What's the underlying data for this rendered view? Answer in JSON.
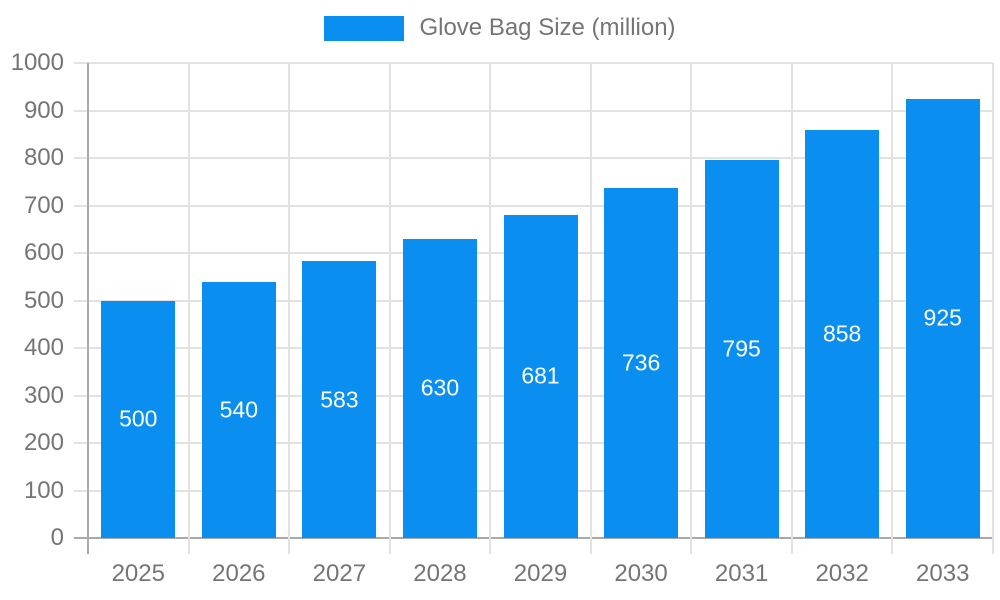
{
  "legend": {
    "label": "Glove Bag Size (million)"
  },
  "chart_data": {
    "type": "bar",
    "title": "Glove Bag Size (million)",
    "categories": [
      "2025",
      "2026",
      "2027",
      "2028",
      "2029",
      "2030",
      "2031",
      "2032",
      "2033"
    ],
    "values": [
      500,
      540,
      583,
      630,
      681,
      736,
      795,
      858,
      925
    ],
    "xlabel": "",
    "ylabel": "",
    "ylim": [
      0,
      1000
    ],
    "yticks": [
      0,
      100,
      200,
      300,
      400,
      500,
      600,
      700,
      800,
      900,
      1000
    ],
    "grid": true,
    "legend_position": "top-center",
    "value_labels": "inside-center"
  },
  "colors": {
    "bar": "#0a8ff0",
    "axis_text": "#757575",
    "grid_line": "#e2e2e2",
    "axis_line": "#a9a9a9",
    "value_label": "#ffffff"
  }
}
